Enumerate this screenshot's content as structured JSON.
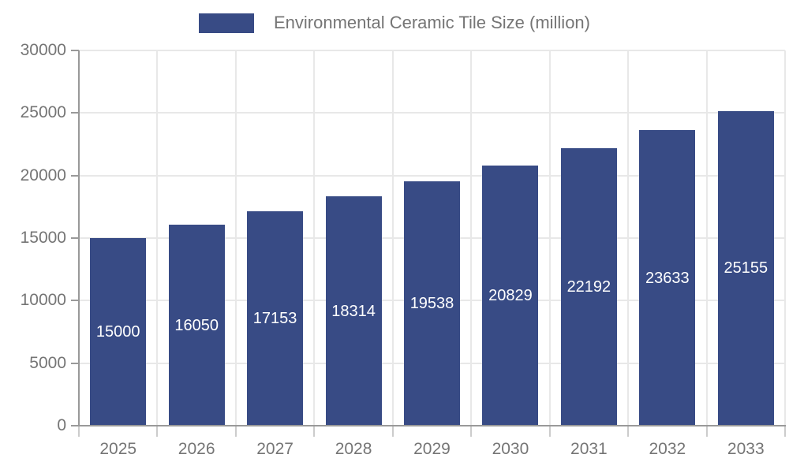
{
  "legend": {
    "label": "Environmental Ceramic Tile Size (million)"
  },
  "chart_data": {
    "type": "bar",
    "title": "",
    "categories": [
      "2025",
      "2026",
      "2027",
      "2028",
      "2029",
      "2030",
      "2031",
      "2032",
      "2033"
    ],
    "values": [
      15000,
      16050,
      17153,
      18314,
      19538,
      20829,
      22192,
      23633,
      25155
    ],
    "series_name": "Environmental Ceramic Tile Size (million)",
    "xlabel": "",
    "ylabel": "",
    "ylim": [
      0,
      30000
    ],
    "yticks": [
      0,
      5000,
      10000,
      15000,
      20000,
      25000,
      30000
    ],
    "grid": true,
    "legend_position": "top",
    "bar_labels_inside": true,
    "colors": {
      "bar": "#384b85",
      "bar_label": "#ffffff",
      "axis": "#999999",
      "grid": "#e8e8e8",
      "tick_text": "#757575",
      "category_tick": "#cccccc",
      "background": "#ffffff"
    }
  }
}
